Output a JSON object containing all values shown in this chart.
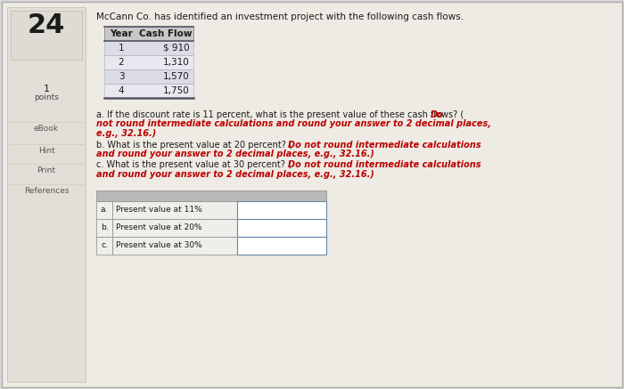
{
  "problem_number": "24",
  "intro_text": "McCann Co. has identified an investment project with the following cash flows.",
  "table_headers": [
    "Year",
    "Cash Flow"
  ],
  "table_rows": [
    [
      "1",
      "$ 910"
    ],
    [
      "2",
      "1,310"
    ],
    [
      "3",
      "1,570"
    ],
    [
      "4",
      "1,750"
    ]
  ],
  "sidebar_labels": [
    "eBook",
    "Hint",
    "Print",
    "References"
  ],
  "q_a_black": "a. If the discount rate is 11 percent, what is the present value of these cash flows? (",
  "q_a_red1": "Do",
  "q_a_red2": "not round intermediate calculations and round your answer to 2 decimal places,",
  "q_a_red3": "e.g., 32.16.)",
  "q_b_black": "b. What is the present value at 20 percent? (",
  "q_b_red": "Do not round intermediate calculations",
  "q_b_red2": "and round your answer to 2 decimal places, e.g., 32.16.)",
  "q_c_black": "c. What is the present value at 30 percent? (",
  "q_c_red": "Do not round intermediate calculations",
  "q_c_red2": "and round your answer to 2 decimal places, e.g., 32.16.)",
  "answer_labels": [
    "a.",
    "b.",
    "c."
  ],
  "answer_texts": [
    "Present value at 11%",
    "Present value at 20%",
    "Present value at 30%"
  ],
  "bg_outer": "#d8d8d8",
  "bg_page": "#eeebe4",
  "bg_sidebar": "#e2dfd8",
  "bg_table_header": "#c8c8c8",
  "bg_table_row_odd": "#dcdce8",
  "bg_table_row_even": "#e8e8f0",
  "bg_answer_header": "#b8b8b8",
  "bg_answer_row": "#f0eeea",
  "bg_answer_input": "#ffffff",
  "color_black": "#1a1a1a",
  "color_red": "#bb0000",
  "color_link": "#555555",
  "color_table_border": "#555566"
}
